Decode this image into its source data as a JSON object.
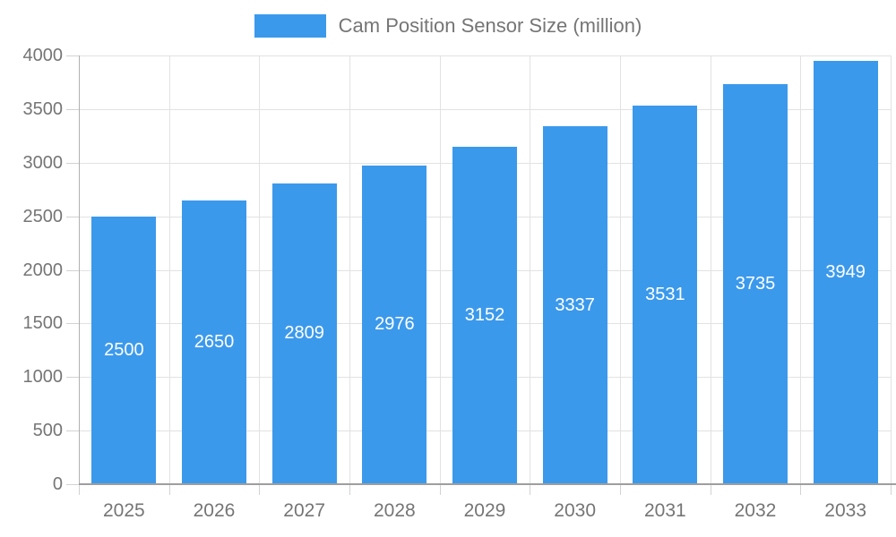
{
  "chart": {
    "colors": {
      "bar": "#3b99ec",
      "grid": "#e2e2e2",
      "y_axis_line": "#b0b0b0",
      "x_axis_line": "#9e9e9e",
      "tick": "#d2d2d2",
      "axis_text": "#757575",
      "value_label_text": "#ffffff",
      "background": "#ffffff"
    }
  },
  "chart_data": {
    "type": "bar",
    "title": "Cam Position Sensor Size (million)",
    "legend": [
      "Cam Position Sensor Size (million)"
    ],
    "legend_position": "top-center",
    "categories": [
      "2025",
      "2026",
      "2027",
      "2028",
      "2029",
      "2030",
      "2031",
      "2032",
      "2033"
    ],
    "series": [
      {
        "name": "Cam Position Sensor Size (million)",
        "values": [
          2500,
          2650,
          2809,
          2976,
          3152,
          3337,
          3531,
          3735,
          3949
        ]
      }
    ],
    "value_labels": "inside-center",
    "xlabel": "",
    "ylabel": "",
    "ylim": [
      0,
      4000
    ],
    "ytick_step": 500,
    "yticks": [
      0,
      500,
      1000,
      1500,
      2000,
      2500,
      3000,
      3500,
      4000
    ],
    "grid": "both"
  }
}
